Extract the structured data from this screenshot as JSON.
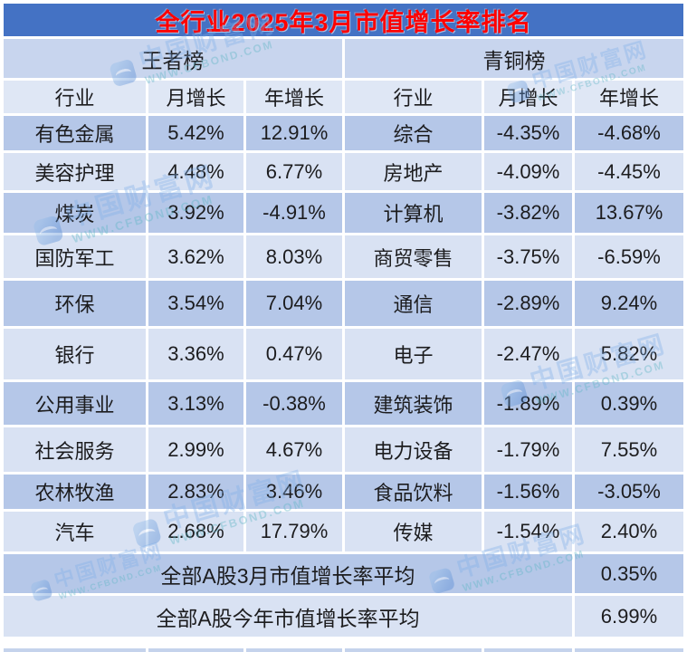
{
  "chart_data": {
    "type": "table",
    "title": "全行业2025年3月市值增长率排名",
    "groups": [
      {
        "name": "王者榜",
        "columns": [
          "行业",
          "月增长",
          "年增长"
        ],
        "rows": [
          [
            "有色金属",
            "5.42%",
            "12.91%"
          ],
          [
            "美容护理",
            "4.48%",
            "6.77%"
          ],
          [
            "煤炭",
            "3.92%",
            "-4.91%"
          ],
          [
            "国防军工",
            "3.62%",
            "8.03%"
          ],
          [
            "环保",
            "3.54%",
            "7.04%"
          ],
          [
            "银行",
            "3.36%",
            "0.47%"
          ],
          [
            "公用事业",
            "3.13%",
            "-0.38%"
          ],
          [
            "社会服务",
            "2.99%",
            "4.67%"
          ],
          [
            "农林牧渔",
            "2.83%",
            "3.46%"
          ],
          [
            "汽车",
            "2.68%",
            "17.79%"
          ]
        ]
      },
      {
        "name": "青铜榜",
        "columns": [
          "行业",
          "月增长",
          "年增长"
        ],
        "rows": [
          [
            "综合",
            "-4.35%",
            "-4.68%"
          ],
          [
            "房地产",
            "-4.09%",
            "-4.45%"
          ],
          [
            "计算机",
            "-3.82%",
            "13.67%"
          ],
          [
            "商贸零售",
            "-3.75%",
            "-6.59%"
          ],
          [
            "通信",
            "-2.89%",
            "9.24%"
          ],
          [
            "电子",
            "-2.47%",
            "5.82%"
          ],
          [
            "建筑装饰",
            "-1.89%",
            "0.39%"
          ],
          [
            "电力设备",
            "-1.79%",
            "7.55%"
          ],
          [
            "食品饮料",
            "-1.56%",
            "-3.05%"
          ],
          [
            "传媒",
            "-1.54%",
            "2.40%"
          ]
        ]
      }
    ],
    "summary_rows": [
      [
        "全部A股3月市值增长率平均",
        "0.35%"
      ],
      [
        "全部A股今年市值增长率平均",
        "6.99%"
      ]
    ],
    "layout_hints": {
      "grid": "white 3px separators",
      "row_shading": "alternating"
    }
  },
  "watermark": {
    "brand": "中国财富网",
    "site": "WWW.CFBOND.COM"
  },
  "colors": {
    "title_bar": "#4472c4",
    "title_text": "#fe0000",
    "group_band": "#c8d5ee",
    "header_row": "#dfe7f5",
    "row_dark": "#b5c7e8",
    "row_light": "#d9e2f3",
    "text": "#1c1c1e"
  }
}
